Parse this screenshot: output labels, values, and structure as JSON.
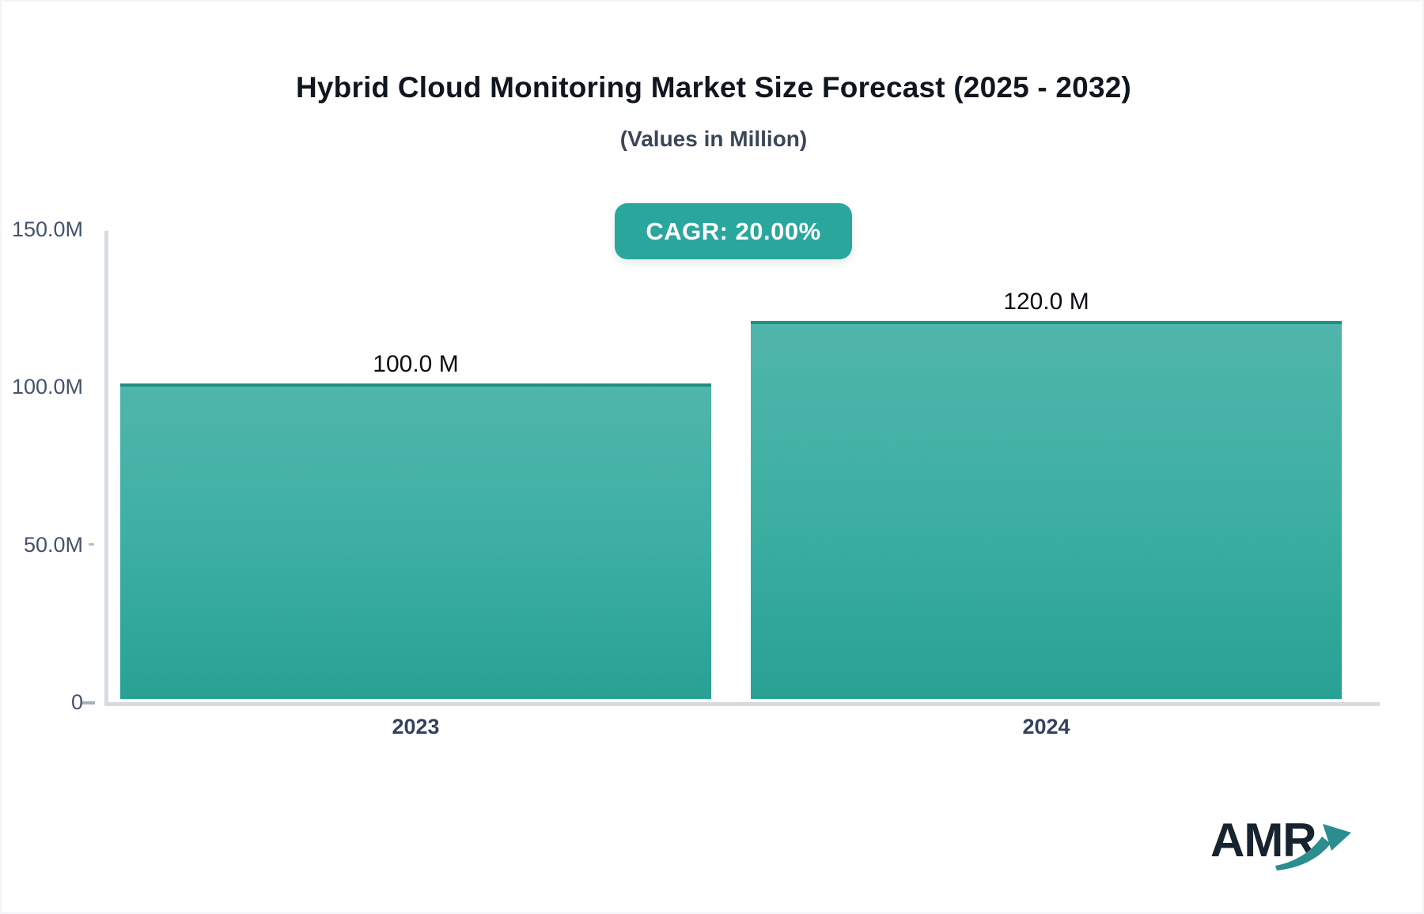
{
  "badge": {
    "label": "CAGR: 20.00%",
    "bg_color": "#2aa79d",
    "text_color": "#ffffff"
  },
  "logo": {
    "text": "AMR",
    "text_color": "#17242f",
    "arrow_color": "#2c8d8e"
  },
  "chart_data": {
    "type": "bar",
    "title": "Hybrid Cloud Monitoring Market Size Forecast (2025 - 2032)",
    "subtitle": "(Values in Million)",
    "cagr": "20.00%",
    "categories": [
      "2023",
      "2024"
    ],
    "values": [
      100.0,
      120.0
    ],
    "value_labels": [
      "100.0 M",
      "120.0 M"
    ],
    "unit": "Million",
    "ylim": [
      0,
      150
    ],
    "yticks": [
      {
        "value": 150,
        "label": "150.0M"
      },
      {
        "value": 100,
        "label": "100.0M"
      },
      {
        "value": 50,
        "label": "50.0M"
      },
      {
        "value": 0,
        "label": "0"
      }
    ],
    "grid": false,
    "legend_position": "none",
    "colors": {
      "bar_gradient_top": "#50b5ab",
      "bar_gradient_bottom": "#28a195",
      "bar_top_border": "#1f8e86",
      "axis_line": "#d7dbdf",
      "ytick_label": "#44536b",
      "category_label": "#33415c",
      "value_label": "#0a0e13",
      "title": "#10161f",
      "subtitle": "#3c4657"
    }
  }
}
